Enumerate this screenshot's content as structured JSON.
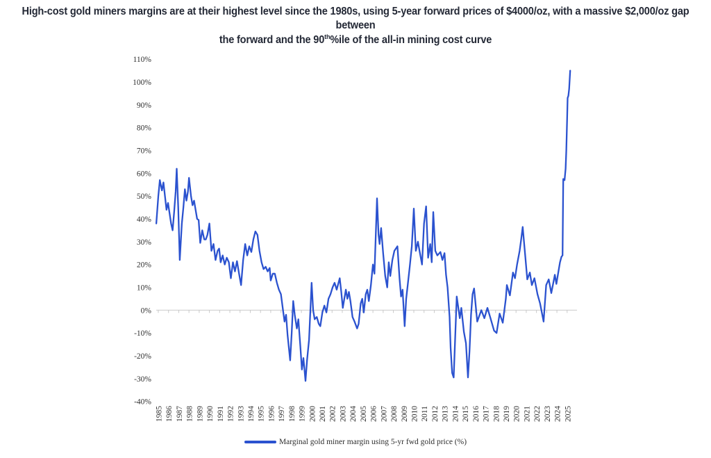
{
  "title": {
    "line1": "High-cost gold miners margins are at their highest level since the 1980s, using 5-year forward prices of $4000/oz, with a massive $2,000/oz gap between",
    "line2_prefix": "the forward and the 90",
    "line2_sup": "th",
    "line2_suffix": "%ile of the all-in mining cost curve"
  },
  "legend": {
    "label": "Marginal gold miner margin using 5-yr fwd gold price (%)"
  },
  "colors": {
    "line_blue": "#2b52cf",
    "axis_gray": "#c9c9c9",
    "tick_text": "#303030",
    "title_navy": "#242936",
    "background": "#ffffff"
  },
  "chart_data": {
    "type": "line",
    "title": "High-cost gold miners margins are at their highest level since the 1980s, using 5-year forward prices of $4000/oz, with a massive $2,000/oz gap between the forward and the 90th%ile of the all-in mining cost curve",
    "xlabel": "",
    "ylabel": "",
    "xlim": [
      1984.8,
      2025.6
    ],
    "ylim": [
      -40,
      110
    ],
    "grid": false,
    "legend_position": "bottom",
    "axis_color": "#c9c9c9",
    "x_ticks": [
      1985,
      1986,
      1987,
      1988,
      1989,
      1990,
      1991,
      1992,
      1993,
      1994,
      1995,
      1996,
      1997,
      1998,
      1999,
      2000,
      2001,
      2002,
      2003,
      2004,
      2005,
      2006,
      2007,
      2008,
      2009,
      2010,
      2011,
      2012,
      2013,
      2014,
      2015,
      2016,
      2017,
      2018,
      2019,
      2020,
      2021,
      2022,
      2023,
      2024,
      2025
    ],
    "y_ticks": [
      {
        "value": 110,
        "label": "110%"
      },
      {
        "value": 100,
        "label": "100%"
      },
      {
        "value": 90,
        "label": "90%"
      },
      {
        "value": 80,
        "label": "80%"
      },
      {
        "value": 70,
        "label": "70%"
      },
      {
        "value": 60,
        "label": "60%"
      },
      {
        "value": 50,
        "label": "50%"
      },
      {
        "value": 40,
        "label": "40%"
      },
      {
        "value": 30,
        "label": "30%"
      },
      {
        "value": 20,
        "label": "20%"
      },
      {
        "value": 10,
        "label": "10%"
      },
      {
        "value": 0,
        "label": "0%"
      },
      {
        "value": -10,
        "label": "-10%"
      },
      {
        "value": -20,
        "label": "-20%"
      },
      {
        "value": -30,
        "label": "-30%"
      },
      {
        "value": -40,
        "label": "-40%"
      }
    ],
    "series": [
      {
        "name": "Marginal gold miner margin using 5-yr fwd gold price (%)",
        "color": "#2b52cf",
        "points": [
          [
            1984.8,
            38
          ],
          [
            1985.0,
            50
          ],
          [
            1985.15,
            57
          ],
          [
            1985.35,
            52.5
          ],
          [
            1985.5,
            56
          ],
          [
            1985.65,
            50
          ],
          [
            1985.8,
            44
          ],
          [
            1985.95,
            47
          ],
          [
            1986.1,
            42.5
          ],
          [
            1986.25,
            38
          ],
          [
            1986.4,
            35
          ],
          [
            1986.55,
            43
          ],
          [
            1986.7,
            52
          ],
          [
            1986.8,
            62
          ],
          [
            1986.95,
            45
          ],
          [
            1987.1,
            22
          ],
          [
            1987.3,
            38
          ],
          [
            1987.45,
            45
          ],
          [
            1987.6,
            53
          ],
          [
            1987.75,
            48
          ],
          [
            1987.9,
            52
          ],
          [
            1988.0,
            58
          ],
          [
            1988.2,
            50
          ],
          [
            1988.35,
            46
          ],
          [
            1988.5,
            48
          ],
          [
            1988.65,
            44
          ],
          [
            1988.8,
            40
          ],
          [
            1988.95,
            39.5
          ],
          [
            1989.1,
            29.5
          ],
          [
            1989.3,
            35
          ],
          [
            1989.5,
            31
          ],
          [
            1989.65,
            31
          ],
          [
            1989.8,
            33
          ],
          [
            1990.0,
            38
          ],
          [
            1990.2,
            26
          ],
          [
            1990.4,
            29
          ],
          [
            1990.6,
            22
          ],
          [
            1990.8,
            26
          ],
          [
            1990.95,
            27
          ],
          [
            1991.1,
            21
          ],
          [
            1991.3,
            24
          ],
          [
            1991.5,
            20
          ],
          [
            1991.7,
            23
          ],
          [
            1991.9,
            21
          ],
          [
            1992.1,
            14
          ],
          [
            1992.3,
            21
          ],
          [
            1992.5,
            17
          ],
          [
            1992.7,
            21.5
          ],
          [
            1992.9,
            16
          ],
          [
            1993.1,
            11
          ],
          [
            1993.3,
            22
          ],
          [
            1993.5,
            29
          ],
          [
            1993.7,
            24
          ],
          [
            1993.9,
            28
          ],
          [
            1994.1,
            25.5
          ],
          [
            1994.3,
            31
          ],
          [
            1994.5,
            34.5
          ],
          [
            1994.7,
            33
          ],
          [
            1994.9,
            26
          ],
          [
            1995.1,
            21
          ],
          [
            1995.3,
            18
          ],
          [
            1995.5,
            19
          ],
          [
            1995.7,
            17
          ],
          [
            1995.9,
            18.5
          ],
          [
            1996.0,
            13
          ],
          [
            1996.2,
            16
          ],
          [
            1996.4,
            16
          ],
          [
            1996.6,
            12
          ],
          [
            1996.8,
            9
          ],
          [
            1997.0,
            7
          ],
          [
            1997.2,
            0
          ],
          [
            1997.35,
            -5
          ],
          [
            1997.5,
            -2
          ],
          [
            1997.65,
            -11
          ],
          [
            1997.9,
            -22
          ],
          [
            1998.05,
            -10
          ],
          [
            1998.2,
            4
          ],
          [
            1998.35,
            -2
          ],
          [
            1998.55,
            -8
          ],
          [
            1998.7,
            -4
          ],
          [
            1998.9,
            -16
          ],
          [
            1999.05,
            -26
          ],
          [
            1999.2,
            -21
          ],
          [
            1999.4,
            -31
          ],
          [
            1999.55,
            -22
          ],
          [
            1999.75,
            -13
          ],
          [
            2000.0,
            12
          ],
          [
            2000.15,
            0
          ],
          [
            2000.3,
            -4
          ],
          [
            2000.5,
            -3
          ],
          [
            2000.7,
            -6
          ],
          [
            2000.85,
            -7
          ],
          [
            2001.05,
            -1
          ],
          [
            2001.25,
            2
          ],
          [
            2001.45,
            -1
          ],
          [
            2001.65,
            5
          ],
          [
            2001.85,
            7
          ],
          [
            2002.05,
            10
          ],
          [
            2002.25,
            12
          ],
          [
            2002.45,
            9
          ],
          [
            2002.75,
            14
          ],
          [
            2002.9,
            8
          ],
          [
            2003.05,
            1
          ],
          [
            2003.2,
            5
          ],
          [
            2003.35,
            9
          ],
          [
            2003.5,
            5
          ],
          [
            2003.65,
            8
          ],
          [
            2003.8,
            4
          ],
          [
            2004.0,
            -3
          ],
          [
            2004.2,
            -5
          ],
          [
            2004.45,
            -8
          ],
          [
            2004.6,
            -6
          ],
          [
            2004.8,
            3
          ],
          [
            2004.95,
            5
          ],
          [
            2005.1,
            -1
          ],
          [
            2005.3,
            7
          ],
          [
            2005.45,
            9
          ],
          [
            2005.6,
            4
          ],
          [
            2005.8,
            11
          ],
          [
            2006.0,
            20
          ],
          [
            2006.15,
            16
          ],
          [
            2006.4,
            49
          ],
          [
            2006.55,
            33
          ],
          [
            2006.65,
            29
          ],
          [
            2006.8,
            36
          ],
          [
            2007.0,
            25
          ],
          [
            2007.2,
            15
          ],
          [
            2007.4,
            10
          ],
          [
            2007.55,
            21
          ],
          [
            2007.7,
            15
          ],
          [
            2007.9,
            22
          ],
          [
            2008.1,
            26
          ],
          [
            2008.4,
            28
          ],
          [
            2008.6,
            14
          ],
          [
            2008.75,
            6
          ],
          [
            2008.9,
            9
          ],
          [
            2009.1,
            -7
          ],
          [
            2009.25,
            5
          ],
          [
            2009.4,
            11
          ],
          [
            2009.6,
            19
          ],
          [
            2009.8,
            28
          ],
          [
            2010.0,
            44.5
          ],
          [
            2010.2,
            26
          ],
          [
            2010.4,
            30
          ],
          [
            2010.6,
            25
          ],
          [
            2010.8,
            20
          ],
          [
            2011.0,
            38
          ],
          [
            2011.2,
            45.5
          ],
          [
            2011.4,
            23
          ],
          [
            2011.6,
            29
          ],
          [
            2011.75,
            21
          ],
          [
            2011.9,
            43
          ],
          [
            2012.1,
            26
          ],
          [
            2012.3,
            24
          ],
          [
            2012.6,
            25.5
          ],
          [
            2012.8,
            22
          ],
          [
            2013.0,
            25
          ],
          [
            2013.15,
            15.5
          ],
          [
            2013.3,
            10
          ],
          [
            2013.5,
            -3
          ],
          [
            2013.6,
            -16.5
          ],
          [
            2013.75,
            -27.5
          ],
          [
            2013.9,
            -29.5
          ],
          [
            2014.2,
            6
          ],
          [
            2014.5,
            -3.5
          ],
          [
            2014.65,
            1
          ],
          [
            2014.9,
            -9.5
          ],
          [
            2015.1,
            -14.5
          ],
          [
            2015.3,
            -29.5
          ],
          [
            2015.45,
            -18
          ],
          [
            2015.6,
            -2
          ],
          [
            2015.75,
            7
          ],
          [
            2015.9,
            9.5
          ],
          [
            2016.2,
            -5
          ],
          [
            2016.6,
            0
          ],
          [
            2016.9,
            -3.5
          ],
          [
            2017.2,
            1
          ],
          [
            2017.5,
            -3.5
          ],
          [
            2017.85,
            -9
          ],
          [
            2018.1,
            -10
          ],
          [
            2018.4,
            -1.5
          ],
          [
            2018.7,
            -5.5
          ],
          [
            2019.0,
            5
          ],
          [
            2019.1,
            11
          ],
          [
            2019.4,
            6.5
          ],
          [
            2019.7,
            16.5
          ],
          [
            2019.9,
            14
          ],
          [
            2020.1,
            20
          ],
          [
            2020.35,
            26
          ],
          [
            2020.5,
            31
          ],
          [
            2020.65,
            36.5
          ],
          [
            2020.9,
            24
          ],
          [
            2021.1,
            13.5
          ],
          [
            2021.35,
            16.5
          ],
          [
            2021.55,
            11
          ],
          [
            2021.8,
            14
          ],
          [
            2022.1,
            7
          ],
          [
            2022.35,
            3
          ],
          [
            2022.7,
            -5
          ],
          [
            2022.95,
            11
          ],
          [
            2023.2,
            13.5
          ],
          [
            2023.45,
            7.5
          ],
          [
            2023.65,
            12
          ],
          [
            2023.8,
            15.5
          ],
          [
            2023.95,
            11.5
          ],
          [
            2024.15,
            17
          ],
          [
            2024.3,
            21
          ],
          [
            2024.45,
            23.5
          ],
          [
            2024.55,
            24
          ],
          [
            2024.62,
            57.5
          ],
          [
            2024.75,
            57
          ],
          [
            2024.85,
            62
          ],
          [
            2024.92,
            70
          ],
          [
            2025.0,
            84
          ],
          [
            2025.05,
            93
          ],
          [
            2025.12,
            94
          ],
          [
            2025.2,
            97
          ],
          [
            2025.3,
            105
          ]
        ]
      }
    ]
  }
}
